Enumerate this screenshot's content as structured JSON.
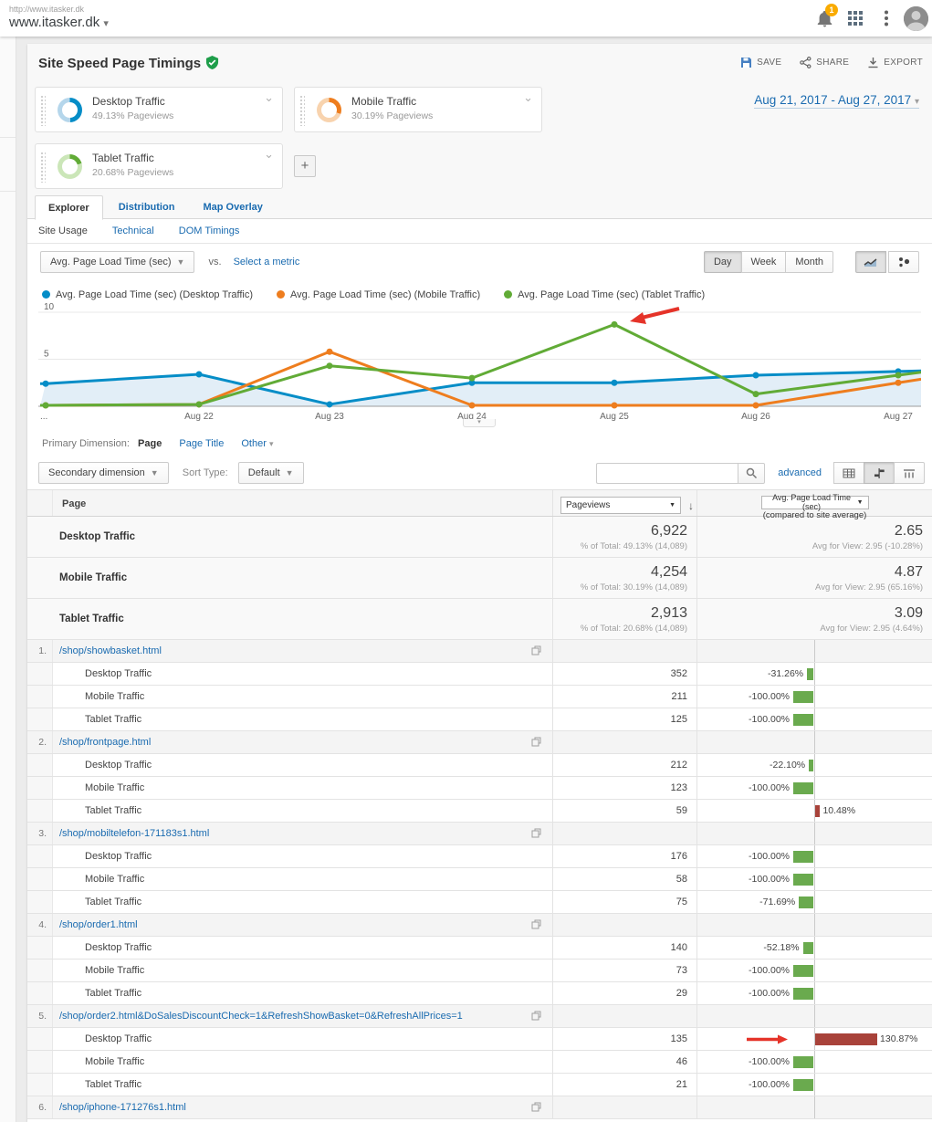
{
  "topbar": {
    "site_url": "http://www.itasker.dk",
    "account_name": "www.itasker.dk",
    "notification_count": "1"
  },
  "report": {
    "title": "Site Speed Page Timings",
    "save_label": "SAVE",
    "share_label": "SHARE",
    "export_label": "EXPORT",
    "date_range": "Aug 21, 2017 - Aug 27, 2017"
  },
  "segments": [
    {
      "name": "Desktop Traffic",
      "detail": "49.13% Pageviews",
      "pct": 49.13,
      "color": "#058dc7",
      "light": "#b5d6eb"
    },
    {
      "name": "Mobile Traffic",
      "detail": "30.19% Pageviews",
      "pct": 30.19,
      "color": "#ee7d1e",
      "light": "#f8d3ae"
    },
    {
      "name": "Tablet Traffic",
      "detail": "20.68% Pageviews",
      "pct": 20.68,
      "color": "#61ab36",
      "light": "#cbe6b8"
    }
  ],
  "add_segment_label": "+",
  "tabs": [
    {
      "label": "Explorer"
    },
    {
      "label": "Distribution"
    },
    {
      "label": "Map Overlay"
    }
  ],
  "subtabs": [
    {
      "label": "Site Usage"
    },
    {
      "label": "Technical"
    },
    {
      "label": "DOM Timings"
    }
  ],
  "metric_bar": {
    "metric_select": "Avg. Page Load Time (sec)",
    "vs_label": "vs.",
    "select_metric_label": "Select a metric",
    "granularity": [
      "Day",
      "Week",
      "Month"
    ]
  },
  "chart_data": {
    "type": "line",
    "x": [
      "Aug 21",
      "Aug 22",
      "Aug 23",
      "Aug 24",
      "Aug 25",
      "Aug 26",
      "Aug 27"
    ],
    "x_tick_labels": [
      "...",
      "Aug 22",
      "Aug 23",
      "Aug 24",
      "Aug 25",
      "Aug 26",
      "Aug 27"
    ],
    "ylim": [
      0,
      10
    ],
    "yticks": [
      5,
      10
    ],
    "grid": true,
    "legend_position": "top",
    "series": [
      {
        "name": "Avg. Page Load Time (sec) (Desktop Traffic)",
        "color": "#058dc7",
        "area": true,
        "values": [
          2.4,
          3.4,
          0.2,
          2.5,
          2.5,
          3.3,
          3.7
        ]
      },
      {
        "name": "Avg. Page Load Time (sec) (Mobile Traffic)",
        "color": "#ee7d1e",
        "area": false,
        "values": [
          0.1,
          0.2,
          5.8,
          0.1,
          0.1,
          0.1,
          2.5
        ]
      },
      {
        "name": "Avg. Page Load Time (sec) (Tablet Traffic)",
        "color": "#61ab36",
        "area": false,
        "values": [
          0.1,
          0.2,
          4.3,
          3.0,
          8.7,
          1.3,
          3.3
        ]
      }
    ],
    "annotations": [
      {
        "type": "red-arrow",
        "target": "Tablet Traffic peak Aug 25"
      }
    ]
  },
  "primary_dimension": {
    "label": "Primary Dimension:",
    "active": "Page",
    "links": [
      "Page Title",
      "Other"
    ]
  },
  "toolbar": {
    "secondary_dimension": "Secondary dimension",
    "sort_type_label": "Sort Type:",
    "sort_type_value": "Default",
    "search_value": "",
    "advanced_label": "advanced"
  },
  "table": {
    "header": {
      "page": "Page",
      "pageviews": "Pageviews",
      "metric": "Avg. Page Load Time (sec)",
      "metric_sub": "(compared to site average)"
    },
    "summary_rows": [
      {
        "name": "Desktop Traffic",
        "pageviews": "6,922",
        "pageviews_sub": "% of Total: 49.13% (14,089)",
        "metric": "2.65",
        "metric_sub": "Avg for View: 2.95 (-10.28%)"
      },
      {
        "name": "Mobile Traffic",
        "pageviews": "4,254",
        "pageviews_sub": "% of Total: 30.19% (14,089)",
        "metric": "4.87",
        "metric_sub": "Avg for View: 2.95 (65.16%)"
      },
      {
        "name": "Tablet Traffic",
        "pageviews": "2,913",
        "pageviews_sub": "% of Total: 20.68% (14,089)",
        "metric": "3.09",
        "metric_sub": "Avg for View: 2.95 (4.64%)"
      }
    ],
    "groups": [
      {
        "index": "1.",
        "page": "/shop/showbasket.html",
        "rows": [
          {
            "segment": "Desktop Traffic",
            "pageviews": "352",
            "pct": -31.26,
            "label": "-31.26%"
          },
          {
            "segment": "Mobile Traffic",
            "pageviews": "211",
            "pct": -100.0,
            "label": "-100.00%"
          },
          {
            "segment": "Tablet Traffic",
            "pageviews": "125",
            "pct": -100.0,
            "label": "-100.00%"
          }
        ]
      },
      {
        "index": "2.",
        "page": "/shop/frontpage.html",
        "rows": [
          {
            "segment": "Desktop Traffic",
            "pageviews": "212",
            "pct": -22.1,
            "label": "-22.10%"
          },
          {
            "segment": "Mobile Traffic",
            "pageviews": "123",
            "pct": -100.0,
            "label": "-100.00%"
          },
          {
            "segment": "Tablet Traffic",
            "pageviews": "59",
            "pct": 10.48,
            "label": "10.48%"
          }
        ]
      },
      {
        "index": "3.",
        "page": "/shop/mobiltelefon-171183s1.html",
        "rows": [
          {
            "segment": "Desktop Traffic",
            "pageviews": "176",
            "pct": -100.0,
            "label": "-100.00%"
          },
          {
            "segment": "Mobile Traffic",
            "pageviews": "58",
            "pct": -100.0,
            "label": "-100.00%"
          },
          {
            "segment": "Tablet Traffic",
            "pageviews": "75",
            "pct": -71.69,
            "label": "-71.69%"
          }
        ]
      },
      {
        "index": "4.",
        "page": "/shop/order1.html",
        "rows": [
          {
            "segment": "Desktop Traffic",
            "pageviews": "140",
            "pct": -52.18,
            "label": "-52.18%"
          },
          {
            "segment": "Mobile Traffic",
            "pageviews": "73",
            "pct": -100.0,
            "label": "-100.00%"
          },
          {
            "segment": "Tablet Traffic",
            "pageviews": "29",
            "pct": -100.0,
            "label": "-100.00%"
          }
        ]
      },
      {
        "index": "5.",
        "page": "/shop/order2.html&DoSalesDiscountCheck=1&RefreshShowBasket=0&RefreshAllPrices=1",
        "rows": [
          {
            "segment": "Desktop Traffic",
            "pageviews": "135",
            "pct": 130.87,
            "label": "130.87%",
            "arrow": true
          },
          {
            "segment": "Mobile Traffic",
            "pageviews": "46",
            "pct": -100.0,
            "label": "-100.00%"
          },
          {
            "segment": "Tablet Traffic",
            "pageviews": "21",
            "pct": -100.0,
            "label": "-100.00%"
          }
        ]
      },
      {
        "index": "6.",
        "page": "/shop/iphone-171276s1.html",
        "rows": []
      }
    ]
  }
}
